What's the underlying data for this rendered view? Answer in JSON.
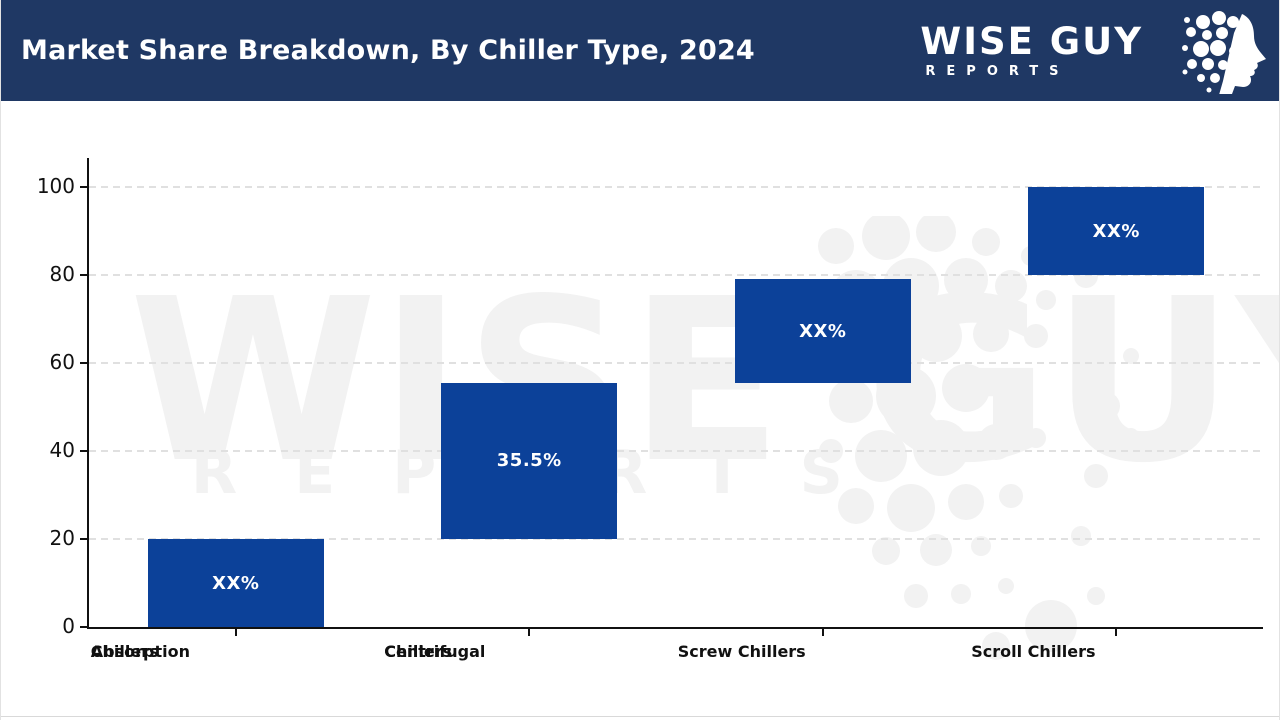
{
  "header": {
    "title": "Market Share Breakdown, By Chiller Type, 2024",
    "logo": {
      "line1": "WISE GUY",
      "line2": "REPORTS"
    }
  },
  "watermark": {
    "line1": "WISE GUY",
    "line2": "REPORTS"
  },
  "chart_data": {
    "type": "bar",
    "subtype": "waterfall",
    "title": "Market Share Breakdown, By Chiller Type, 2024",
    "categories": [
      "Absorption Chillers",
      "Centrifugal Chillers",
      "Screw Chillers",
      "Scroll Chillers"
    ],
    "category_lines": [
      [
        "Absorption",
        "Chillers"
      ],
      [
        "Centrifugal",
        "Chillers"
      ],
      [
        "Screw Chillers"
      ],
      [
        "Scroll Chillers"
      ]
    ],
    "segments": [
      {
        "category": "Absorption Chillers",
        "start": 0,
        "end": 20,
        "label": "XX%"
      },
      {
        "category": "Centrifugal Chillers",
        "start": 20,
        "end": 55.5,
        "label": "35.5%"
      },
      {
        "category": "Screw Chillers",
        "start": 55.5,
        "end": 79,
        "label": "XX%"
      },
      {
        "category": "Scroll Chillers",
        "start": 80,
        "end": 100,
        "label": "XX%"
      }
    ],
    "yticks": [
      0,
      20,
      40,
      60,
      80,
      100
    ],
    "ylim": [
      0,
      107
    ],
    "xlabel": "",
    "ylabel": "",
    "grid": "horizontal-dashed",
    "legend": "none",
    "bar_color": "#0c4199",
    "bar_label_color": "#ffffff",
    "axis_color": "#111111",
    "grid_color": "#e0e0e0"
  },
  "colors": {
    "header_bg": "#1f3864",
    "bar": "#0c4199",
    "watermark": "#f2f2f2",
    "background": "#ffffff"
  }
}
